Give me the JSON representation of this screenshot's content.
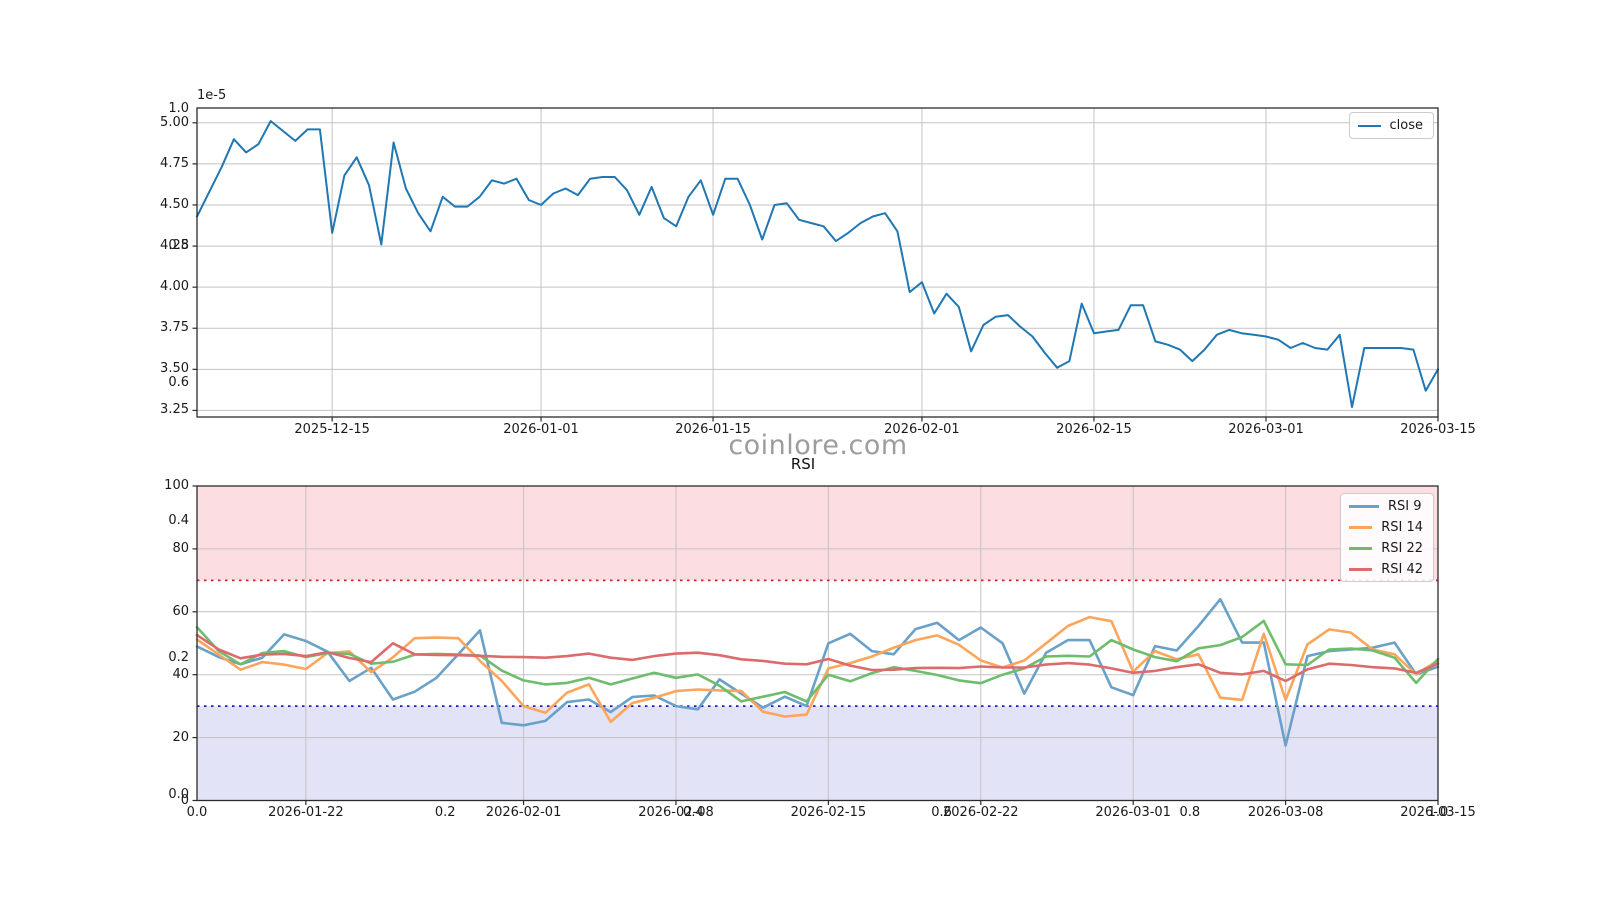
{
  "watermark": "coinlore.com",
  "colors": {
    "grid": "#c3c3c3",
    "spine": "#2b2b2b",
    "text": "#1a1a1a",
    "watermark": "#8c8c8c",
    "overbought_band": "#fcdde1",
    "oversold_band": "#e3e3f8",
    "overbought_line": "#dc2028",
    "oversold_line": "#1d1dc9"
  },
  "hidden_axis": {
    "y_labels": [
      "1.0",
      "0.8",
      "0.6",
      "0.4",
      "0.2",
      "0.0"
    ],
    "x_labels": [
      "0.0",
      "0.2",
      "0.4",
      "0.6",
      "0.8",
      "1.0"
    ]
  },
  "chart_data": [
    {
      "type": "line",
      "name": "price",
      "offset_text": "1e-5",
      "ylabel": "",
      "legend_position": "upper right",
      "ylim": [
        3.21,
        5.09
      ],
      "grid": true,
      "yticks": [
        {
          "v": 5.0,
          "label": "5.00"
        },
        {
          "v": 4.75,
          "label": "4.75"
        },
        {
          "v": 4.5,
          "label": "4.50"
        },
        {
          "v": 4.25,
          "label": "4.25"
        },
        {
          "v": 4.0,
          "label": "4.00"
        },
        {
          "v": 3.75,
          "label": "3.75"
        },
        {
          "v": 3.5,
          "label": "3.50"
        },
        {
          "v": 3.25,
          "label": "3.25"
        }
      ],
      "xticks": [
        {
          "i": 11,
          "label": "2025-12-15"
        },
        {
          "i": 28,
          "label": "2026-01-01"
        },
        {
          "i": 42,
          "label": "2026-01-15"
        },
        {
          "i": 59,
          "label": "2026-02-01"
        },
        {
          "i": 73,
          "label": "2026-02-15"
        },
        {
          "i": 87,
          "label": "2026-03-01"
        },
        {
          "i": 101,
          "label": "2026-03-15"
        }
      ],
      "x_range": [
        "2025-12-04",
        "2026-03-15"
      ],
      "series": [
        {
          "name": "close",
          "color": "#1f77b4",
          "width": 2,
          "values": [
            4.43,
            4.58,
            4.73,
            4.9,
            4.82,
            4.87,
            5.01,
            4.95,
            4.89,
            4.96,
            4.96,
            4.33,
            4.68,
            4.79,
            4.62,
            4.26,
            4.88,
            4.6,
            4.45,
            4.34,
            4.55,
            4.49,
            4.49,
            4.55,
            4.65,
            4.63,
            4.66,
            4.53,
            4.5,
            4.57,
            4.6,
            4.56,
            4.66,
            4.67,
            4.67,
            4.59,
            4.44,
            4.61,
            4.42,
            4.37,
            4.55,
            4.65,
            4.44,
            4.66,
            4.66,
            4.5,
            4.29,
            4.5,
            4.51,
            4.41,
            4.39,
            4.37,
            4.28,
            4.33,
            4.39,
            4.43,
            4.45,
            4.34,
            3.97,
            4.03,
            3.84,
            3.96,
            3.88,
            3.61,
            3.77,
            3.82,
            3.83,
            3.76,
            3.7,
            3.6,
            3.51,
            3.55,
            3.9,
            3.72,
            3.73,
            3.74,
            3.89,
            3.89,
            3.67,
            3.65,
            3.62,
            3.55,
            3.62,
            3.71,
            3.74,
            3.72,
            3.71,
            3.7,
            3.68,
            3.63,
            3.66,
            3.63,
            3.62,
            3.71,
            3.27,
            3.63,
            3.63,
            3.63,
            3.63,
            3.62,
            3.37,
            3.5
          ]
        }
      ]
    },
    {
      "type": "line",
      "name": "rsi",
      "title": "RSI",
      "legend_position": "upper right",
      "ylim": [
        0,
        100
      ],
      "grid": true,
      "bands": [
        {
          "from": 70,
          "to": 100,
          "color": "#fcdde1",
          "name": "overbought-band"
        },
        {
          "from": 0,
          "to": 30,
          "color": "#e3e3f8",
          "name": "oversold-band"
        }
      ],
      "hlines": [
        {
          "v": 70,
          "color": "#dc2028",
          "style": "dotted",
          "name": "overbought-line"
        },
        {
          "v": 30,
          "color": "#1d1dc9",
          "style": "dotted",
          "name": "oversold-line"
        }
      ],
      "yticks": [
        {
          "v": 100,
          "label": "100"
        },
        {
          "v": 80,
          "label": "80"
        },
        {
          "v": 60,
          "label": "60"
        },
        {
          "v": 40,
          "label": "40"
        },
        {
          "v": 20,
          "label": "20"
        },
        {
          "v": 0,
          "label": "0"
        }
      ],
      "xticks": [
        {
          "i": 5,
          "label": "2026-01-22"
        },
        {
          "i": 15,
          "label": "2026-02-01"
        },
        {
          "i": 22,
          "label": "2026-02-08"
        },
        {
          "i": 29,
          "label": "2026-02-15"
        },
        {
          "i": 36,
          "label": "2026-02-22"
        },
        {
          "i": 43,
          "label": "2026-03-01"
        },
        {
          "i": 50,
          "label": "2026-03-08"
        },
        {
          "i": 57,
          "label": "2026-03-15"
        }
      ],
      "x_range": [
        "2026-01-17",
        "2026-03-15"
      ],
      "series": [
        {
          "name": "RSI 9",
          "color": "#6aa1c9",
          "width": 2.6,
          "values": [
            49,
            45.6,
            43.3,
            45.4,
            52.8,
            50.7,
            47.3,
            38,
            42.2,
            32.1,
            34.6,
            39,
            46.5,
            54.1,
            24.7,
            23.9,
            25.3,
            31.3,
            32.1,
            28.1,
            32.9,
            33.4,
            30,
            29,
            38.5,
            34,
            29.5,
            33,
            30,
            50,
            53,
            47.5,
            46.5,
            54.5,
            56.5,
            51,
            55,
            50,
            34,
            47,
            51,
            51,
            36,
            33.5,
            49.1,
            47.7,
            55.5,
            64,
            50.2,
            50.2,
            17.5,
            45.9,
            47.5,
            48,
            48.6,
            50.2,
            40.1,
            42.5
          ]
        },
        {
          "name": "RSI 14",
          "color": "#fca55b",
          "width": 2.6,
          "values": [
            51.2,
            46.4,
            41.6,
            44,
            43.2,
            41.8,
            46.9,
            47.4,
            40.8,
            45.5,
            51.6,
            51.8,
            51.6,
            44.4,
            38,
            30,
            27.9,
            34.3,
            36.9,
            25,
            31,
            32.7,
            34.8,
            35.3,
            35,
            34.8,
            28.2,
            26.7,
            27.3,
            42,
            43.7,
            45.8,
            48.6,
            51,
            52.5,
            49.5,
            44.5,
            42.3,
            44.5,
            50,
            55.5,
            58.3,
            57,
            41,
            47.5,
            44.9,
            46.5,
            32.7,
            32,
            53,
            32,
            49.6,
            54.4,
            53.4,
            48,
            46.5,
            40.1,
            44.5
          ]
        },
        {
          "name": "RSI 22",
          "color": "#6dbd6c",
          "width": 2.6,
          "values": [
            55.1,
            47.5,
            43.3,
            46.9,
            47.5,
            45.6,
            46.9,
            46.6,
            43.5,
            44.1,
            46.4,
            46.6,
            46.4,
            46.1,
            41.3,
            38.2,
            36.9,
            37.4,
            39,
            36.9,
            38.8,
            40.6,
            39,
            40.1,
            36.5,
            31.5,
            33,
            34.5,
            31.5,
            40,
            37.9,
            40.5,
            42.4,
            41.2,
            39.9,
            38.2,
            37.3,
            40,
            42,
            45.8,
            46,
            45.8,
            51,
            48,
            45.6,
            44.3,
            48.4,
            49.4,
            52,
            57.1,
            43.3,
            43.1,
            48,
            48.3,
            47.7,
            45.4,
            37.4,
            45
          ]
        },
        {
          "name": "RSI 42",
          "color": "#dc6c6c",
          "width": 2.6,
          "values": [
            52.6,
            48,
            45.2,
            46.4,
            46.6,
            45.9,
            47.2,
            45.3,
            44,
            50,
            46.5,
            46.3,
            46.2,
            46,
            45.7,
            45.6,
            45.4,
            45.9,
            46.7,
            45.4,
            44.7,
            45.9,
            46.7,
            47,
            46.2,
            44.9,
            44.4,
            43.5,
            43.3,
            45,
            42.9,
            41.5,
            41.6,
            42.1,
            42.2,
            42.1,
            42.6,
            42.3,
            42.3,
            43.2,
            43.7,
            43.2,
            42,
            40.6,
            41.2,
            42.4,
            43.3,
            40.6,
            40.1,
            41.2,
            38,
            41.7,
            43.5,
            43.1,
            42.4,
            42,
            40.6,
            43.5
          ]
        }
      ]
    }
  ]
}
